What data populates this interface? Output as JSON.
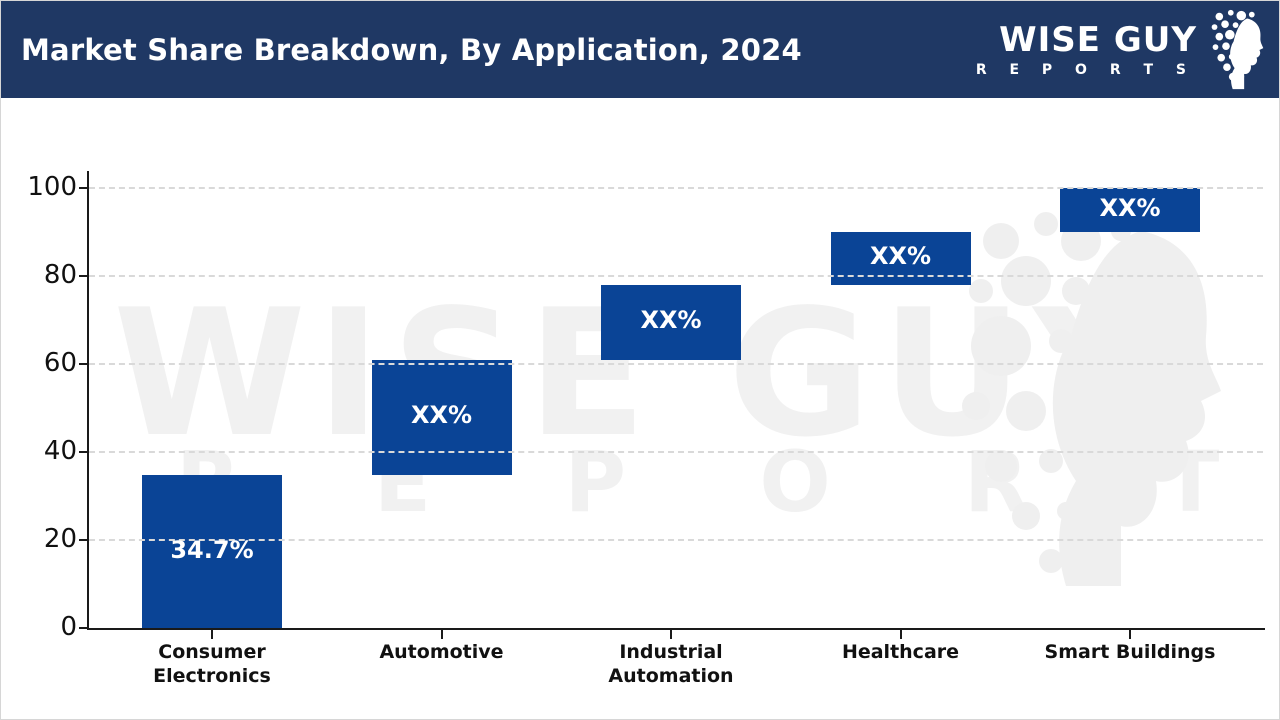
{
  "header": {
    "title": "Market Share Breakdown, By Application, 2024",
    "bg_color": "#1f3864",
    "logo": {
      "name": "WISE GUY",
      "sub": "R E P O R T S"
    }
  },
  "watermark": {
    "line1": "WISE GUY",
    "line2": "R E P O R T S"
  },
  "chart_data": {
    "type": "bar",
    "subtype": "waterfall",
    "title": "Market Share Breakdown, By Application, 2024",
    "categories": [
      "Consumer Electronics",
      "Automotive",
      "Industrial Automation",
      "Healthcare",
      "Smart Buildings"
    ],
    "category_display": [
      "Consumer\nElectronics",
      "Automotive",
      "Industrial\nAutomation",
      "Healthcare",
      "Smart Buildings"
    ],
    "segments": [
      {
        "category": "Consumer Electronics",
        "start": 0,
        "end": 34.7,
        "label": "34.7%"
      },
      {
        "category": "Automotive",
        "start": 34.7,
        "end": 61,
        "label": "XX%"
      },
      {
        "category": "Industrial Automation",
        "start": 61,
        "end": 78,
        "label": "XX%"
      },
      {
        "category": "Healthcare",
        "start": 78,
        "end": 90,
        "label": "XX%"
      },
      {
        "category": "Smart Buildings",
        "start": 90,
        "end": 100,
        "label": "XX%"
      }
    ],
    "y_ticks": [
      0,
      20,
      40,
      60,
      80,
      100
    ],
    "ylim": [
      0,
      100
    ],
    "grid": "horizontal-dashed",
    "legend": "none",
    "colors": {
      "bar": "#0a4496",
      "bar_label": "#ffffff",
      "axis": "#1a1a1a",
      "grid": "#d9d9d9",
      "tick_label": "#111111"
    }
  }
}
